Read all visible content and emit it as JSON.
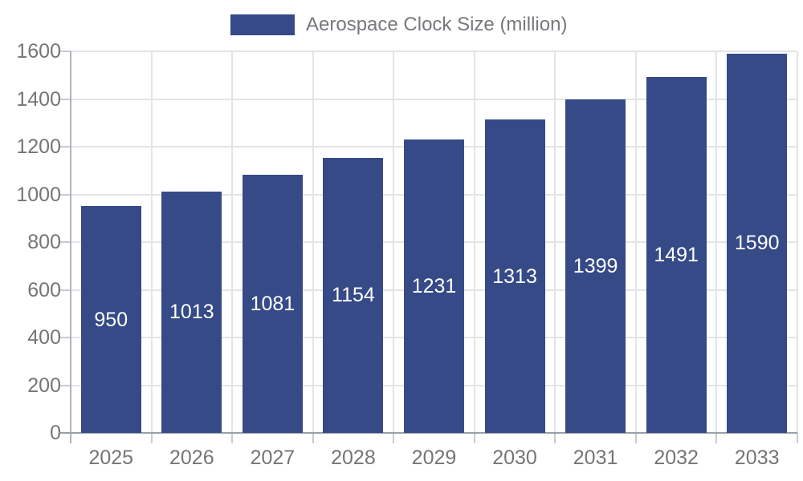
{
  "legend": {
    "label": "Aerospace Clock Size (million)"
  },
  "chart_data": {
    "type": "bar",
    "title": "Aerospace Clock Size (million)",
    "categories": [
      "2025",
      "2026",
      "2027",
      "2028",
      "2029",
      "2030",
      "2031",
      "2032",
      "2033"
    ],
    "series": [
      {
        "name": "Aerospace Clock Size (million)",
        "values": [
          950,
          1013,
          1081,
          1154,
          1231,
          1313,
          1399,
          1491,
          1590
        ]
      }
    ],
    "data_labels": [
      "950",
      "1013",
      "1081",
      "1154",
      "1231",
      "1313",
      "1399",
      "1491",
      "1590"
    ],
    "xlabel": "",
    "ylabel": "",
    "ylim": [
      0,
      1600
    ],
    "ytick_step": 200,
    "ytick_labels": [
      "0",
      "200",
      "400",
      "600",
      "800",
      "1000",
      "1200",
      "1400",
      "1600"
    ],
    "grid": true,
    "legend_position": "top",
    "colors": {
      "bar": "#354a87",
      "bar_label": "#ffffff",
      "axis_text": "#757575",
      "legend_text": "#76787d",
      "gridline": "#e4e4e7"
    }
  }
}
